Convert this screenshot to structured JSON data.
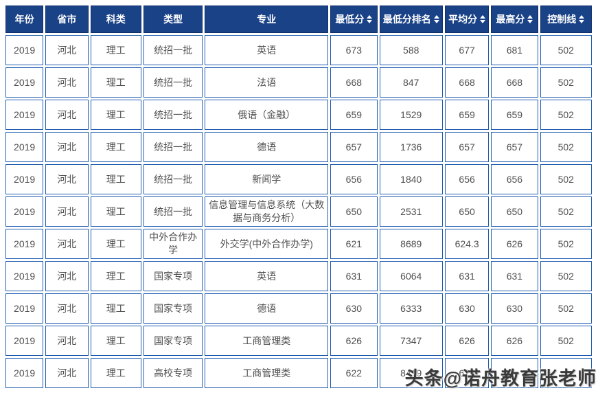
{
  "table": {
    "columns": [
      {
        "key": "year",
        "label": "年份",
        "sortable": false
      },
      {
        "key": "province",
        "label": "省市",
        "sortable": false
      },
      {
        "key": "subject-category",
        "label": "科类",
        "sortable": false
      },
      {
        "key": "admission-type",
        "label": "类型",
        "sortable": false
      },
      {
        "key": "major",
        "label": "专业",
        "sortable": false
      },
      {
        "key": "min-score",
        "label": "最低分",
        "sortable": true
      },
      {
        "key": "min-score-rank",
        "label": "最低分排名",
        "sortable": true
      },
      {
        "key": "avg-score",
        "label": "平均分",
        "sortable": true
      },
      {
        "key": "max-score",
        "label": "最高分",
        "sortable": true
      },
      {
        "key": "control-line",
        "label": "控制线",
        "sortable": true
      }
    ],
    "rows": [
      [
        "2019",
        "河北",
        "理工",
        "统招一批",
        "英语",
        "673",
        "588",
        "677",
        "681",
        "502"
      ],
      [
        "2019",
        "河北",
        "理工",
        "统招一批",
        "法语",
        "668",
        "847",
        "668",
        "668",
        "502"
      ],
      [
        "2019",
        "河北",
        "理工",
        "统招一批",
        "俄语（金融）",
        "659",
        "1529",
        "659",
        "659",
        "502"
      ],
      [
        "2019",
        "河北",
        "理工",
        "统招一批",
        "德语",
        "657",
        "1736",
        "657",
        "657",
        "502"
      ],
      [
        "2019",
        "河北",
        "理工",
        "统招一批",
        "新闻学",
        "656",
        "1840",
        "656",
        "656",
        "502"
      ],
      [
        "2019",
        "河北",
        "理工",
        "统招一批",
        "信息管理与信息系统（大数据与商务分析）",
        "650",
        "2531",
        "650",
        "650",
        "502"
      ],
      [
        "2019",
        "河北",
        "理工",
        "中外合作办学",
        "外交学(中外合作办学)",
        "621",
        "8689",
        "624.3",
        "626",
        "502"
      ],
      [
        "2019",
        "河北",
        "理工",
        "国家专项",
        "英语",
        "631",
        "6064",
        "631",
        "631",
        "502"
      ],
      [
        "2019",
        "河北",
        "理工",
        "国家专项",
        "德语",
        "630",
        "6333",
        "630",
        "630",
        "502"
      ],
      [
        "2019",
        "河北",
        "理工",
        "国家专项",
        "工商管理类",
        "626",
        "7347",
        "626",
        "626",
        "502"
      ],
      [
        "2019",
        "河北",
        "理工",
        "高校专项",
        "工商管理类",
        "622",
        "8419",
        "622",
        "",
        ""
      ]
    ]
  },
  "watermark": {
    "text": "头条@诺舟教育张老师"
  },
  "colors": {
    "header_bg": "#1a4287",
    "header_border": "#10306b",
    "grid_line": "#1e5cae",
    "header_text": "#ffffff",
    "body_text": "#4f4f4f"
  }
}
